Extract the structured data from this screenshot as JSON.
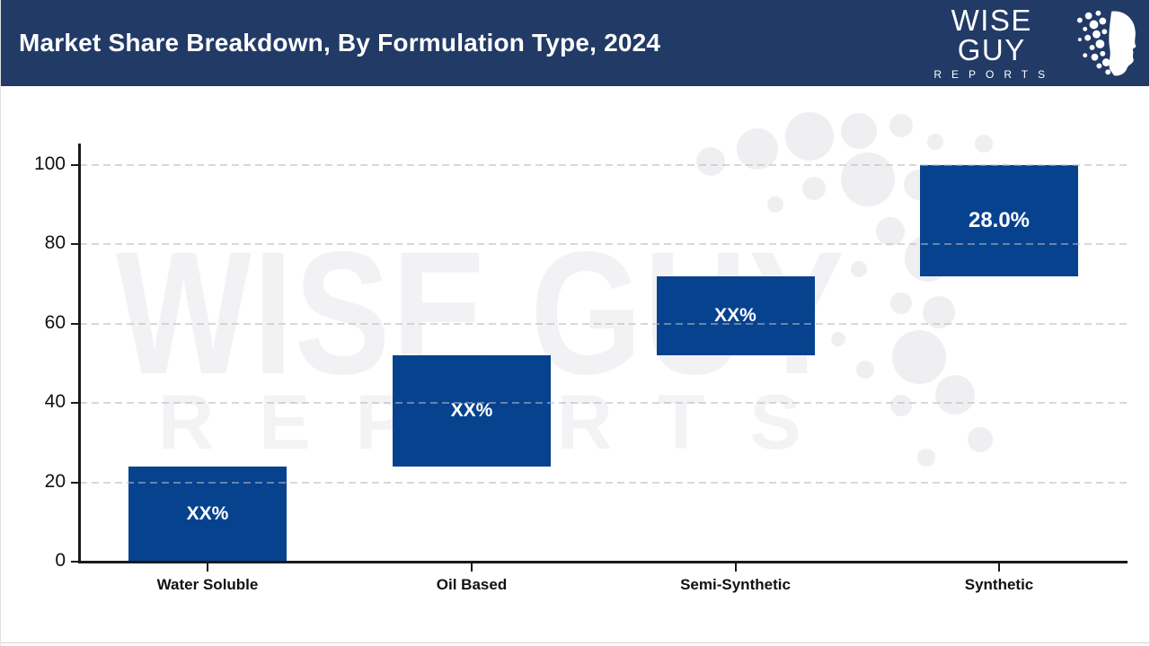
{
  "header": {
    "title": "Market Share Breakdown, By Formulation Type, 2024",
    "logo": {
      "line1": "WISE GUY",
      "line2": "REPORTS"
    }
  },
  "watermark": {
    "line1": "WISE GUY",
    "line2": "REPORTS"
  },
  "colors": {
    "header_bg": "#213a66",
    "bar": "#07428f",
    "grid": "#d9d9d9",
    "axis": "#1a1a1a",
    "bar_label": "#ffffff"
  },
  "chart_data": {
    "type": "bar",
    "subtype": "waterfall",
    "title": "Market Share Breakdown, By Formulation Type, 2024",
    "categories": [
      "Water Soluble",
      "Oil Based",
      "Semi-Synthetic",
      "Synthetic"
    ],
    "segments": [
      {
        "category": "Water Soluble",
        "start": 0,
        "end": 24,
        "value": 24,
        "label": "XX%"
      },
      {
        "category": "Oil Based",
        "start": 24,
        "end": 52,
        "value": 28,
        "label": "XX%"
      },
      {
        "category": "Semi-Synthetic",
        "start": 52,
        "end": 72,
        "value": 20,
        "label": "XX%"
      },
      {
        "category": "Synthetic",
        "start": 72,
        "end": 100,
        "value": 28,
        "label": "28.0%"
      }
    ],
    "yticks": [
      0,
      20,
      40,
      60,
      80,
      100
    ],
    "ylim": [
      0,
      105
    ],
    "xlabel": "",
    "ylabel": "",
    "grid": "horizontal dashed",
    "legend": "none",
    "bar_color": "#07428f",
    "label_color": "#ffffff"
  }
}
